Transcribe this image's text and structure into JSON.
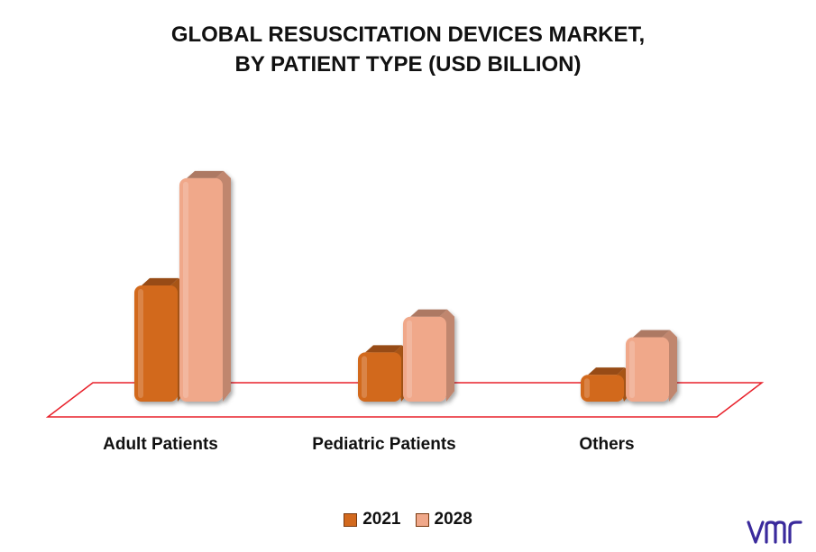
{
  "title_lines": [
    "GLOBAL RESUSCITATION DEVICES MARKET,",
    "BY PATIENT TYPE (USD BILLION)"
  ],
  "chart_data": {
    "type": "bar",
    "title": "GLOBAL RESUSCITATION DEVICES MARKET, BY PATIENT TYPE (USD BILLION)",
    "categories": [
      "Adult Patients",
      "Pediatric Patients",
      "Others"
    ],
    "series": [
      {
        "name": "2021",
        "values": [
          1.3,
          0.55,
          0.3
        ],
        "color": "#d2691e"
      },
      {
        "name": "2028",
        "values": [
          2.5,
          0.95,
          0.72
        ],
        "color": "#f0a88a"
      }
    ],
    "ylim": [
      0,
      2.6
    ],
    "grid": false,
    "legend_position": "bottom-center",
    "xlabel": "",
    "ylabel": ""
  },
  "legend": [
    {
      "label": "2021",
      "color": "#d2691e"
    },
    {
      "label": "2028",
      "color": "#f0a88a"
    }
  ],
  "logo_text": "vmr",
  "colors": {
    "floor_outline": "#e8202a",
    "logo": "#3a2a9c"
  }
}
